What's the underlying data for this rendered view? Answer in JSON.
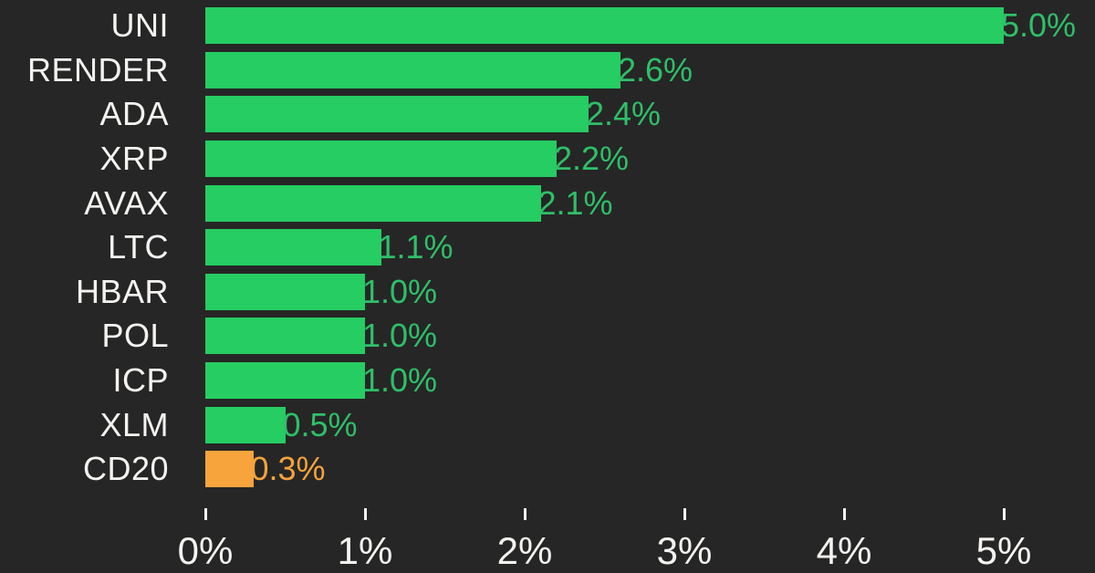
{
  "colors": {
    "background": "#262626",
    "positive_bar": "#25cd62",
    "positive_text": "#2fbf68",
    "highlight_bar": "#f8a43c",
    "highlight_text": "#f5a33c",
    "label_text": "#f5f3f0"
  },
  "chart_data": {
    "type": "bar",
    "orientation": "horizontal",
    "title": "",
    "xlabel": "",
    "ylabel": "",
    "categories": [
      "UNI",
      "RENDER",
      "ADA",
      "XRP",
      "AVAX",
      "LTC",
      "HBAR",
      "POL",
      "ICP",
      "XLM",
      "CD20"
    ],
    "values": [
      5.0,
      2.6,
      2.4,
      2.2,
      2.1,
      1.1,
      1.0,
      1.0,
      1.0,
      0.5,
      0.3
    ],
    "value_labels": [
      "5.0%",
      "2.6%",
      "2.4%",
      "2.2%",
      "2.1%",
      "1.1%",
      "1.0%",
      "1.0%",
      "1.0%",
      "0.5%",
      "0.3%"
    ],
    "highlight_category": "CD20",
    "x_tick_labels": [
      "0%",
      "1%",
      "2%",
      "3%",
      "4%",
      "5%"
    ],
    "xlim": [
      0,
      5
    ],
    "grid": false,
    "legend": false
  }
}
